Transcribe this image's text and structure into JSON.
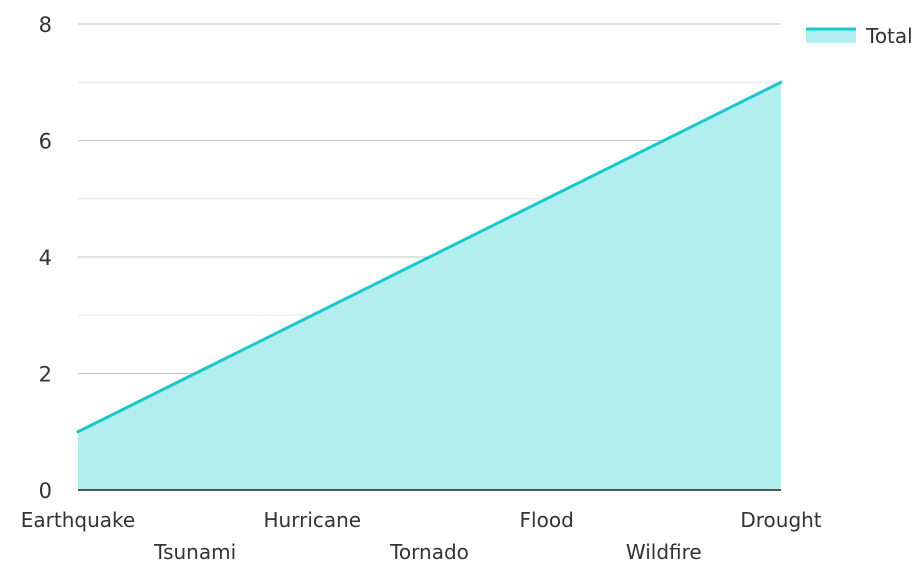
{
  "chart_data": {
    "type": "area",
    "categories": [
      "Earthquake",
      "Tsunami",
      "Hurricane",
      "Tornado",
      "Flood",
      "Wildfire",
      "Drought"
    ],
    "series": [
      {
        "name": "Total",
        "values": [
          1,
          2,
          3,
          4,
          5,
          6,
          7
        ]
      }
    ],
    "ylim": [
      0,
      8
    ],
    "yticks": [
      0,
      2,
      4,
      6,
      8
    ],
    "minor_gridlines": [
      1,
      3,
      5,
      7
    ],
    "grid": true,
    "legend": "top-right",
    "colors": {
      "line": "#1ac8cc",
      "fill": "#b2eeee",
      "major_grid": "#c4c4c4",
      "minor_grid": "#e6e6e6",
      "axis": "#222222",
      "text": "#333333"
    }
  }
}
